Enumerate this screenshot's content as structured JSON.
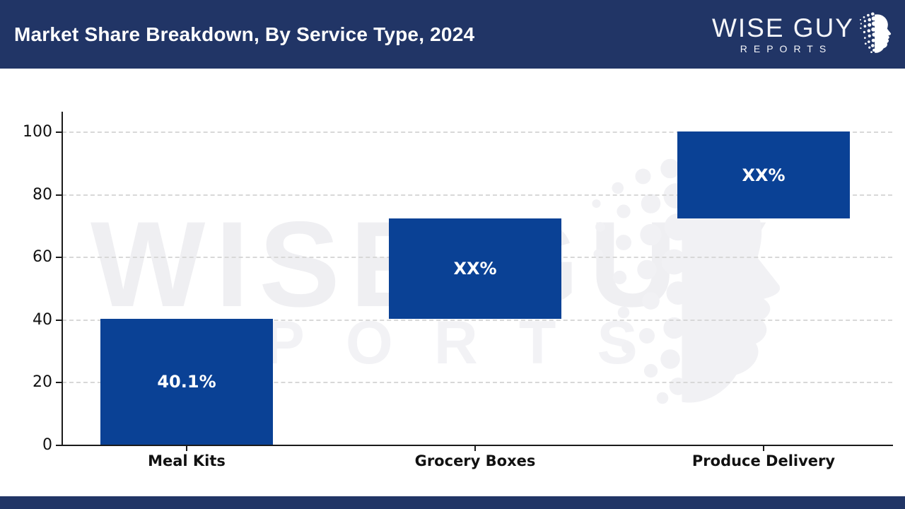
{
  "header": {
    "title": "Market Share Breakdown, By Service Type, 2024",
    "bg_color": "#213566",
    "logo": {
      "line1": "WISE GUY",
      "line2": "REPORTS"
    }
  },
  "watermark": {
    "line1": "WISE GUY",
    "line2": "REPORTS"
  },
  "chart_data": {
    "type": "bar",
    "subtype": "floating-segment-waterfall",
    "title": "Market Share Breakdown, By Service Type, 2024",
    "categories": [
      "Meal Kits",
      "Grocery Boxes",
      "Produce Delivery"
    ],
    "bars": [
      {
        "category": "Meal Kits",
        "label": "40.1%",
        "start": 0,
        "end": 40.1
      },
      {
        "category": "Grocery Boxes",
        "label": "XX%",
        "start": 40.1,
        "end": 72.2
      },
      {
        "category": "Produce Delivery",
        "label": "XX%",
        "start": 72.2,
        "end": 100
      }
    ],
    "ylim": [
      0,
      100
    ],
    "yticks": [
      0,
      20,
      40,
      60,
      80,
      100
    ],
    "grid": "dashed-horizontal",
    "legend": "none",
    "bar_color": "#0a4195",
    "bar_label_color": "#ffffff",
    "axis_color": "#1a1a1a",
    "xlabel": "",
    "ylabel": ""
  },
  "footer": {
    "bg_color": "#213566"
  }
}
